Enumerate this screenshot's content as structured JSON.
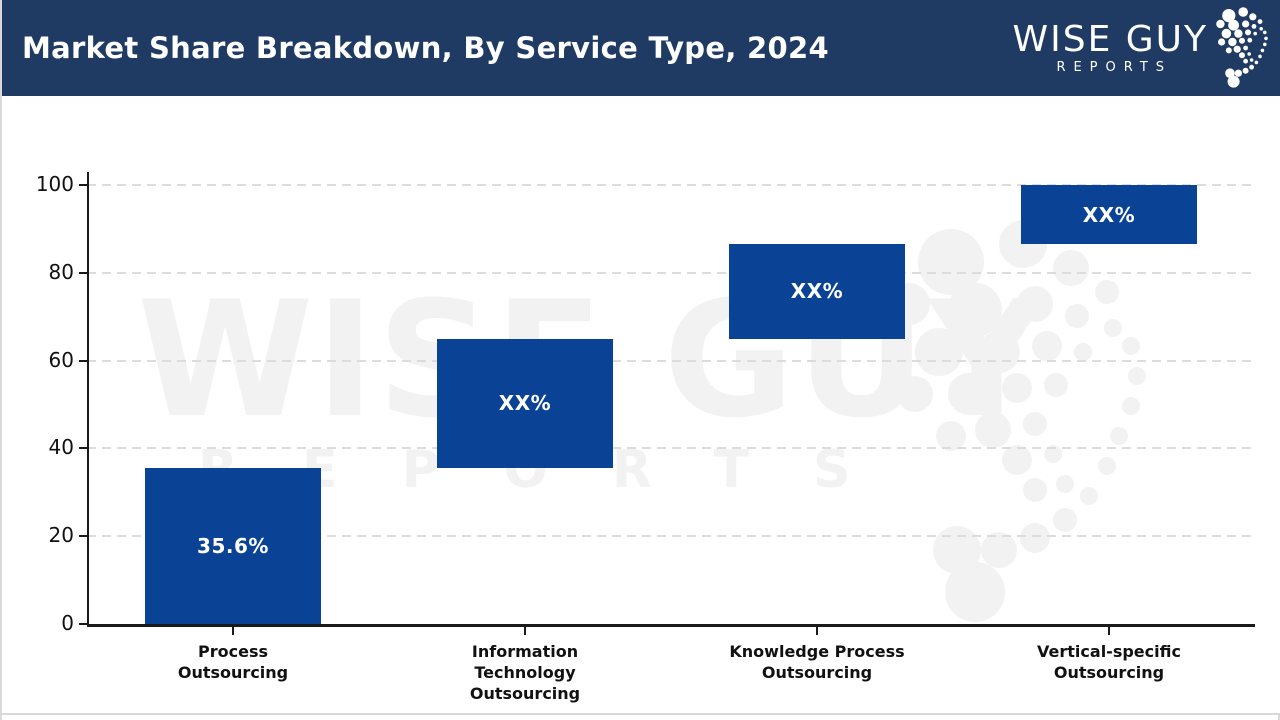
{
  "header": {
    "title": "Market Share Breakdown, By Service Type, 2024",
    "logo": {
      "primary": "WISE GUY",
      "secondary": "REPORTS"
    }
  },
  "watermark": {
    "primary": "WISE GUY",
    "secondary": "REPORTS"
  },
  "chart_data": {
    "type": "bar",
    "subtype": "floating-segment-waterfall",
    "title": "Market Share Breakdown, By Service Type, 2024",
    "categories": [
      {
        "lines": [
          "Process",
          "Outsourcing"
        ]
      },
      {
        "lines": [
          "Information",
          "Technology",
          "Outsourcing"
        ]
      },
      {
        "lines": [
          "Knowledge Process",
          "Outsourcing"
        ]
      },
      {
        "lines": [
          "Vertical-specific",
          "Outsourcing"
        ]
      }
    ],
    "series": [
      {
        "name": "Market share (%)",
        "segments": [
          {
            "start": 0,
            "end": 35.6,
            "label": "35.6%"
          },
          {
            "start": 35.6,
            "end": 65,
            "label": "XX%"
          },
          {
            "start": 65,
            "end": 86.5,
            "label": "XX%"
          },
          {
            "start": 86.5,
            "end": 100,
            "label": "XX%"
          }
        ]
      }
    ],
    "xlabel": "",
    "ylabel": "",
    "ylim": [
      0,
      100
    ],
    "yticks": [
      0,
      20,
      40,
      60,
      80,
      100
    ],
    "grid": "horizontal-dashed",
    "legend": "none",
    "bar_color": "#0a4296",
    "bar_label_color": "#ffffff"
  },
  "colors": {
    "header_bg": "#1f3a63",
    "title_text": "#ffffff",
    "bar": "#0a4296",
    "grid": "#dcdcdc",
    "axis": "#1a1a1a",
    "watermark": "#f2f2f2",
    "figure_border": "#d9d9d9"
  }
}
